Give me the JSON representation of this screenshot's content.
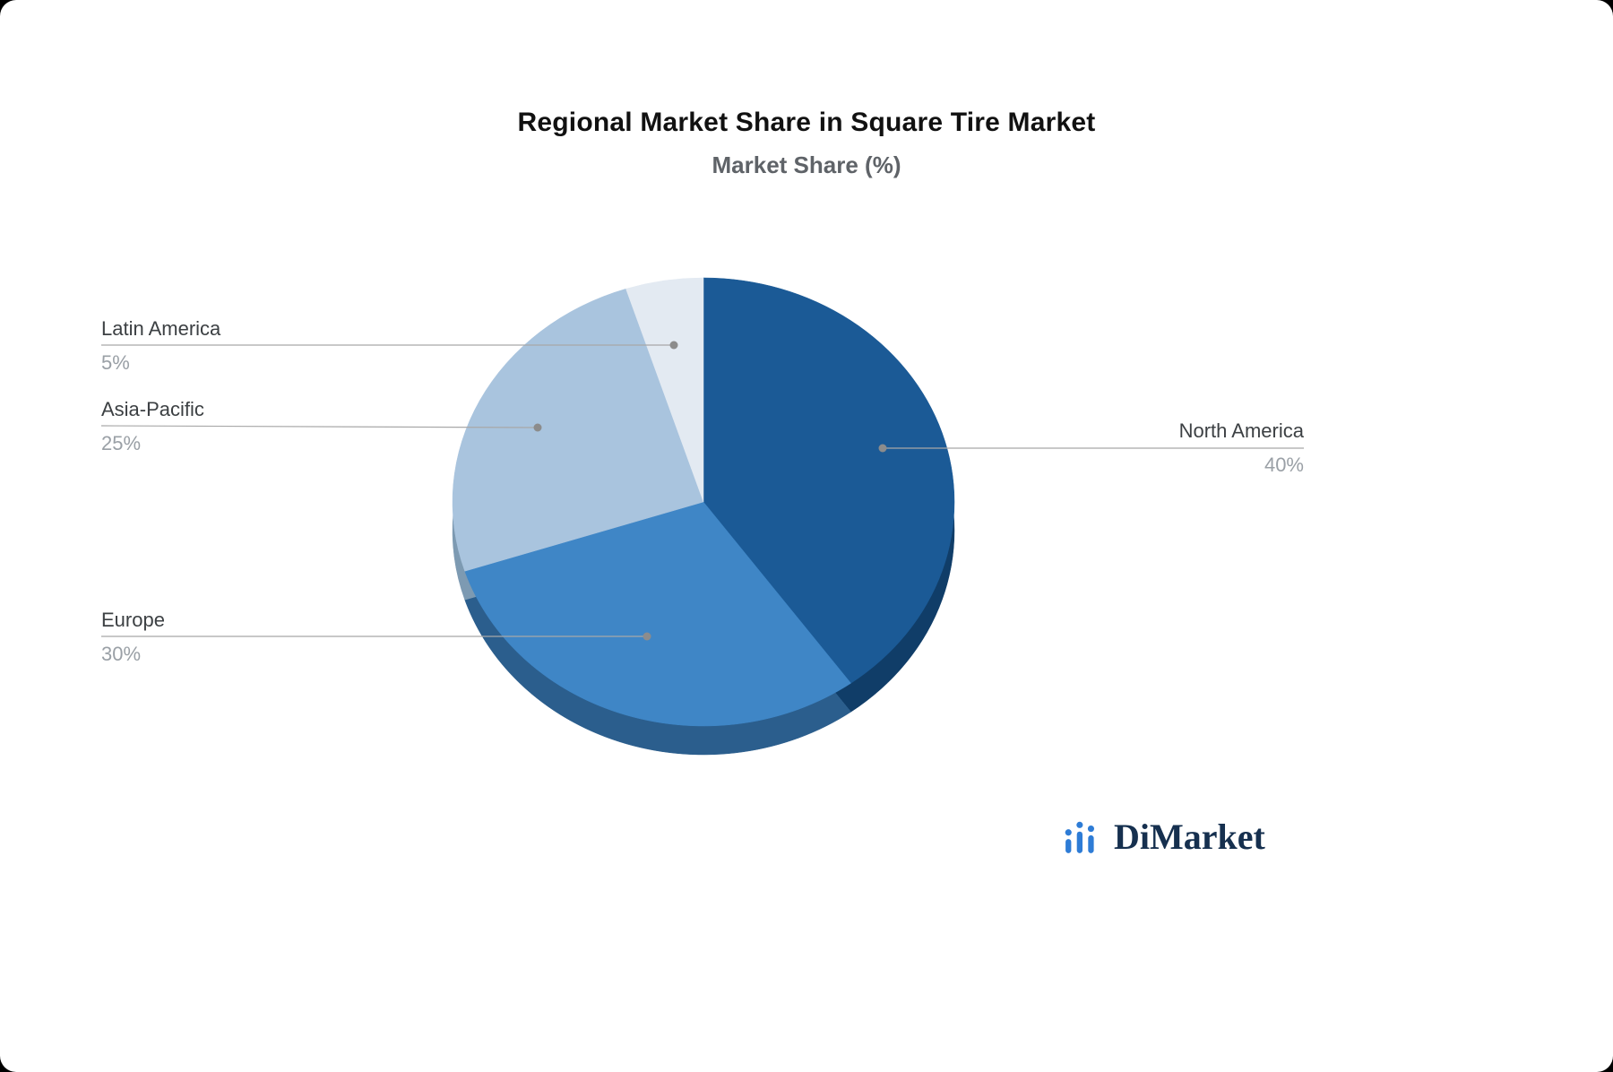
{
  "title": "Regional Market Share in Square Tire Market",
  "subtitle": "Market Share (%)",
  "branding": {
    "logo_text": "DiMarket",
    "logo_icon": "bar-chart-icon",
    "logo_text_color": "#16304f",
    "logo_icon_color": "#2e7cd6"
  },
  "style_colors": {
    "title": "#111111",
    "subtitle": "#5f6368",
    "label_name": "#3c4043",
    "label_value": "#9aa0a6",
    "leader_line": "#a8a8a8",
    "leader_dot": "#8c8c8c"
  },
  "chart_data": {
    "type": "pie",
    "style": "3d",
    "title": "Regional Market Share in Square Tire Market",
    "subtitle": "Market Share (%)",
    "unit": "%",
    "categories": [
      "North America",
      "Europe",
      "Asia-Pacific",
      "Latin America"
    ],
    "values": [
      40,
      30,
      25,
      5
    ],
    "value_labels": [
      "40%",
      "30%",
      "25%",
      "5%"
    ],
    "colors": [
      "#1b5a96",
      "#3f86c6",
      "#a9c4de",
      "#e3eaf2"
    ],
    "rim_colors": [
      "#103d68",
      "#2b5e8d",
      "#7d9ab2",
      "#b9c5d3"
    ],
    "start_angle": 0,
    "direction": "clockwise",
    "legend": false,
    "labels_connected_by_leader_lines": true
  }
}
